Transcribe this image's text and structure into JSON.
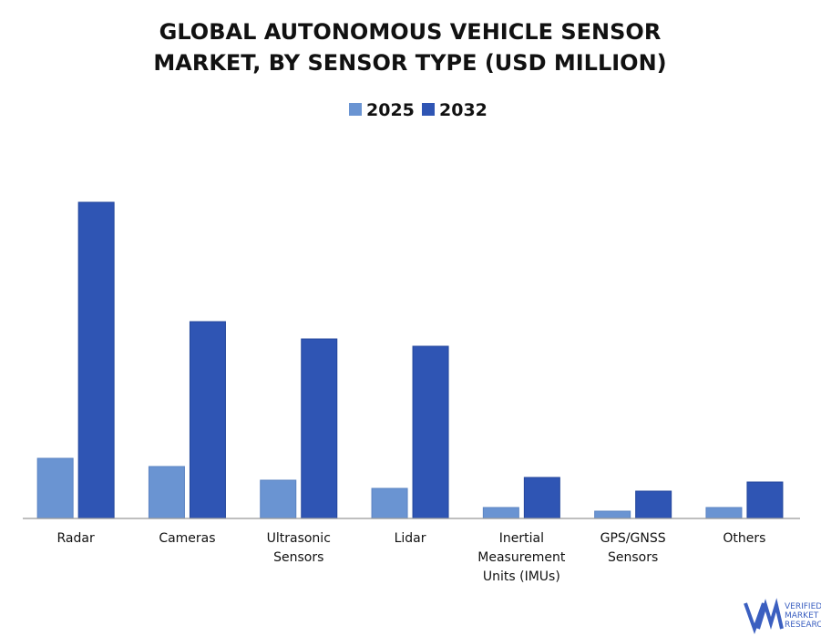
{
  "chart_data": {
    "type": "bar",
    "title": "GLOBAL AUTONOMOUS VEHICLE SENSOR MARKET, BY SENSOR TYPE (USD MILLION)",
    "categories": [
      "Radar",
      "Cameras",
      "Ultrasonic Sensors",
      "Lidar",
      "Inertial Measurement Units (IMUs)",
      "GPS/GNSS Sensors",
      "Others"
    ],
    "series": [
      {
        "name": "2025",
        "color": "#6a94d2",
        "values": [
          66,
          57,
          42,
          33,
          12,
          8,
          12
        ]
      },
      {
        "name": "2032",
        "color": "#2f55b4",
        "values": [
          347,
          216,
          197,
          189,
          45,
          30,
          40
        ]
      }
    ]
  },
  "logo": [
    "VERIFIED",
    "MARKET",
    "RESEARCH"
  ]
}
